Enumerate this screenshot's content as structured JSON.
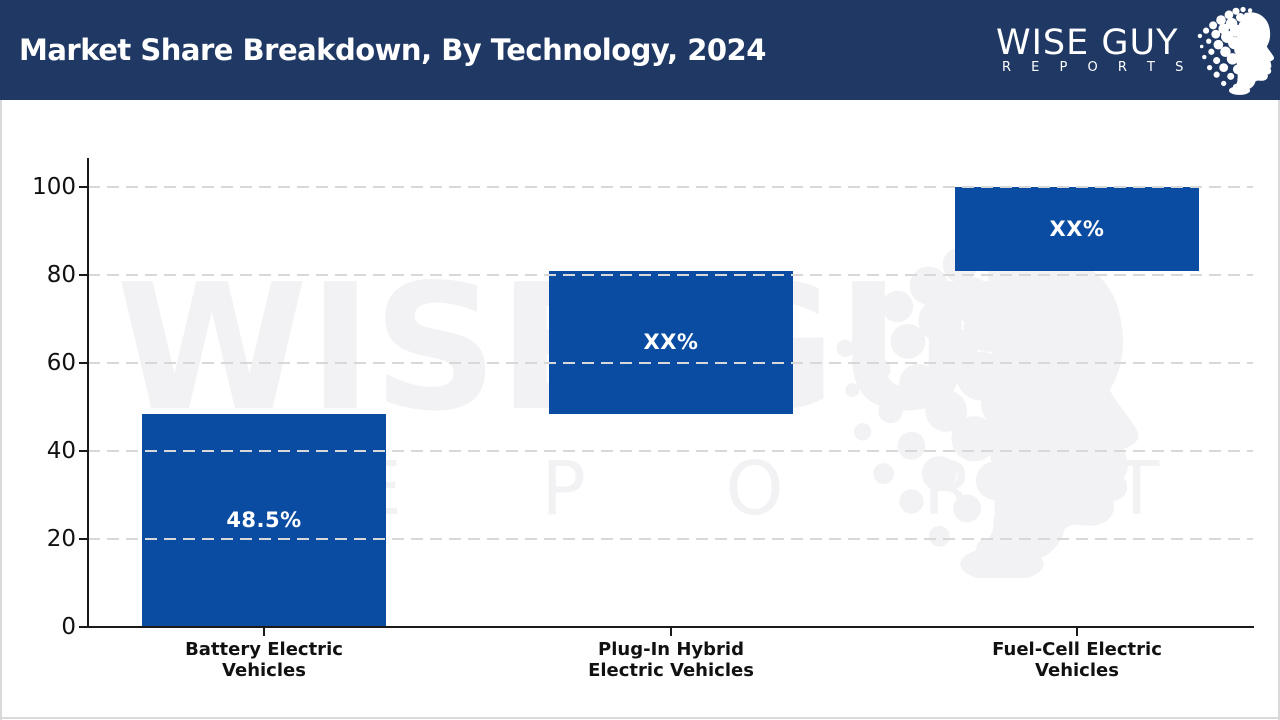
{
  "header": {
    "title": "Market Share Breakdown, By Technology, 2024",
    "logo": {
      "wordmark": "WISE GUY",
      "subtext": "R E P O R T S"
    }
  },
  "watermark": {
    "wordmark": "WISE GUY",
    "subtext": "R E P O R T S"
  },
  "colors": {
    "header_bg": "#1F3864",
    "title_text": "#FFFFFF",
    "bar": "#0B4CA3",
    "bar_label": "#FFFFFF",
    "grid": "#D8D8D8",
    "axis": "#1A1A1A",
    "watermark": "#F2F2F4",
    "frame_border": "#D9D9D9"
  },
  "chart_data": {
    "type": "bar",
    "subtype": "waterfall",
    "title": "Market Share Breakdown, By Technology, 2024",
    "categories": [
      "Battery Electric\nVehicles",
      "Plug-In Hybrid\nElectric Vehicles",
      "Fuel-Cell Electric\nVehicles"
    ],
    "segments": [
      {
        "category": "Battery Electric Vehicles",
        "start": 0,
        "end": 48.5,
        "label": "48.5%"
      },
      {
        "category": "Plug-In Hybrid Electric Vehicles",
        "start": 48.5,
        "end": 81,
        "label": "XX%"
      },
      {
        "category": "Fuel-Cell Electric Vehicles",
        "start": 81,
        "end": 100,
        "label": "XX%"
      }
    ],
    "yticks": [
      0,
      20,
      40,
      60,
      80,
      100
    ],
    "ylim": [
      0,
      100
    ],
    "xlabel": "",
    "ylabel": "",
    "grid": "horizontal-dashed-over-bars",
    "legend": "none",
    "bar_color": "#0B4CA3",
    "unit": "%"
  }
}
